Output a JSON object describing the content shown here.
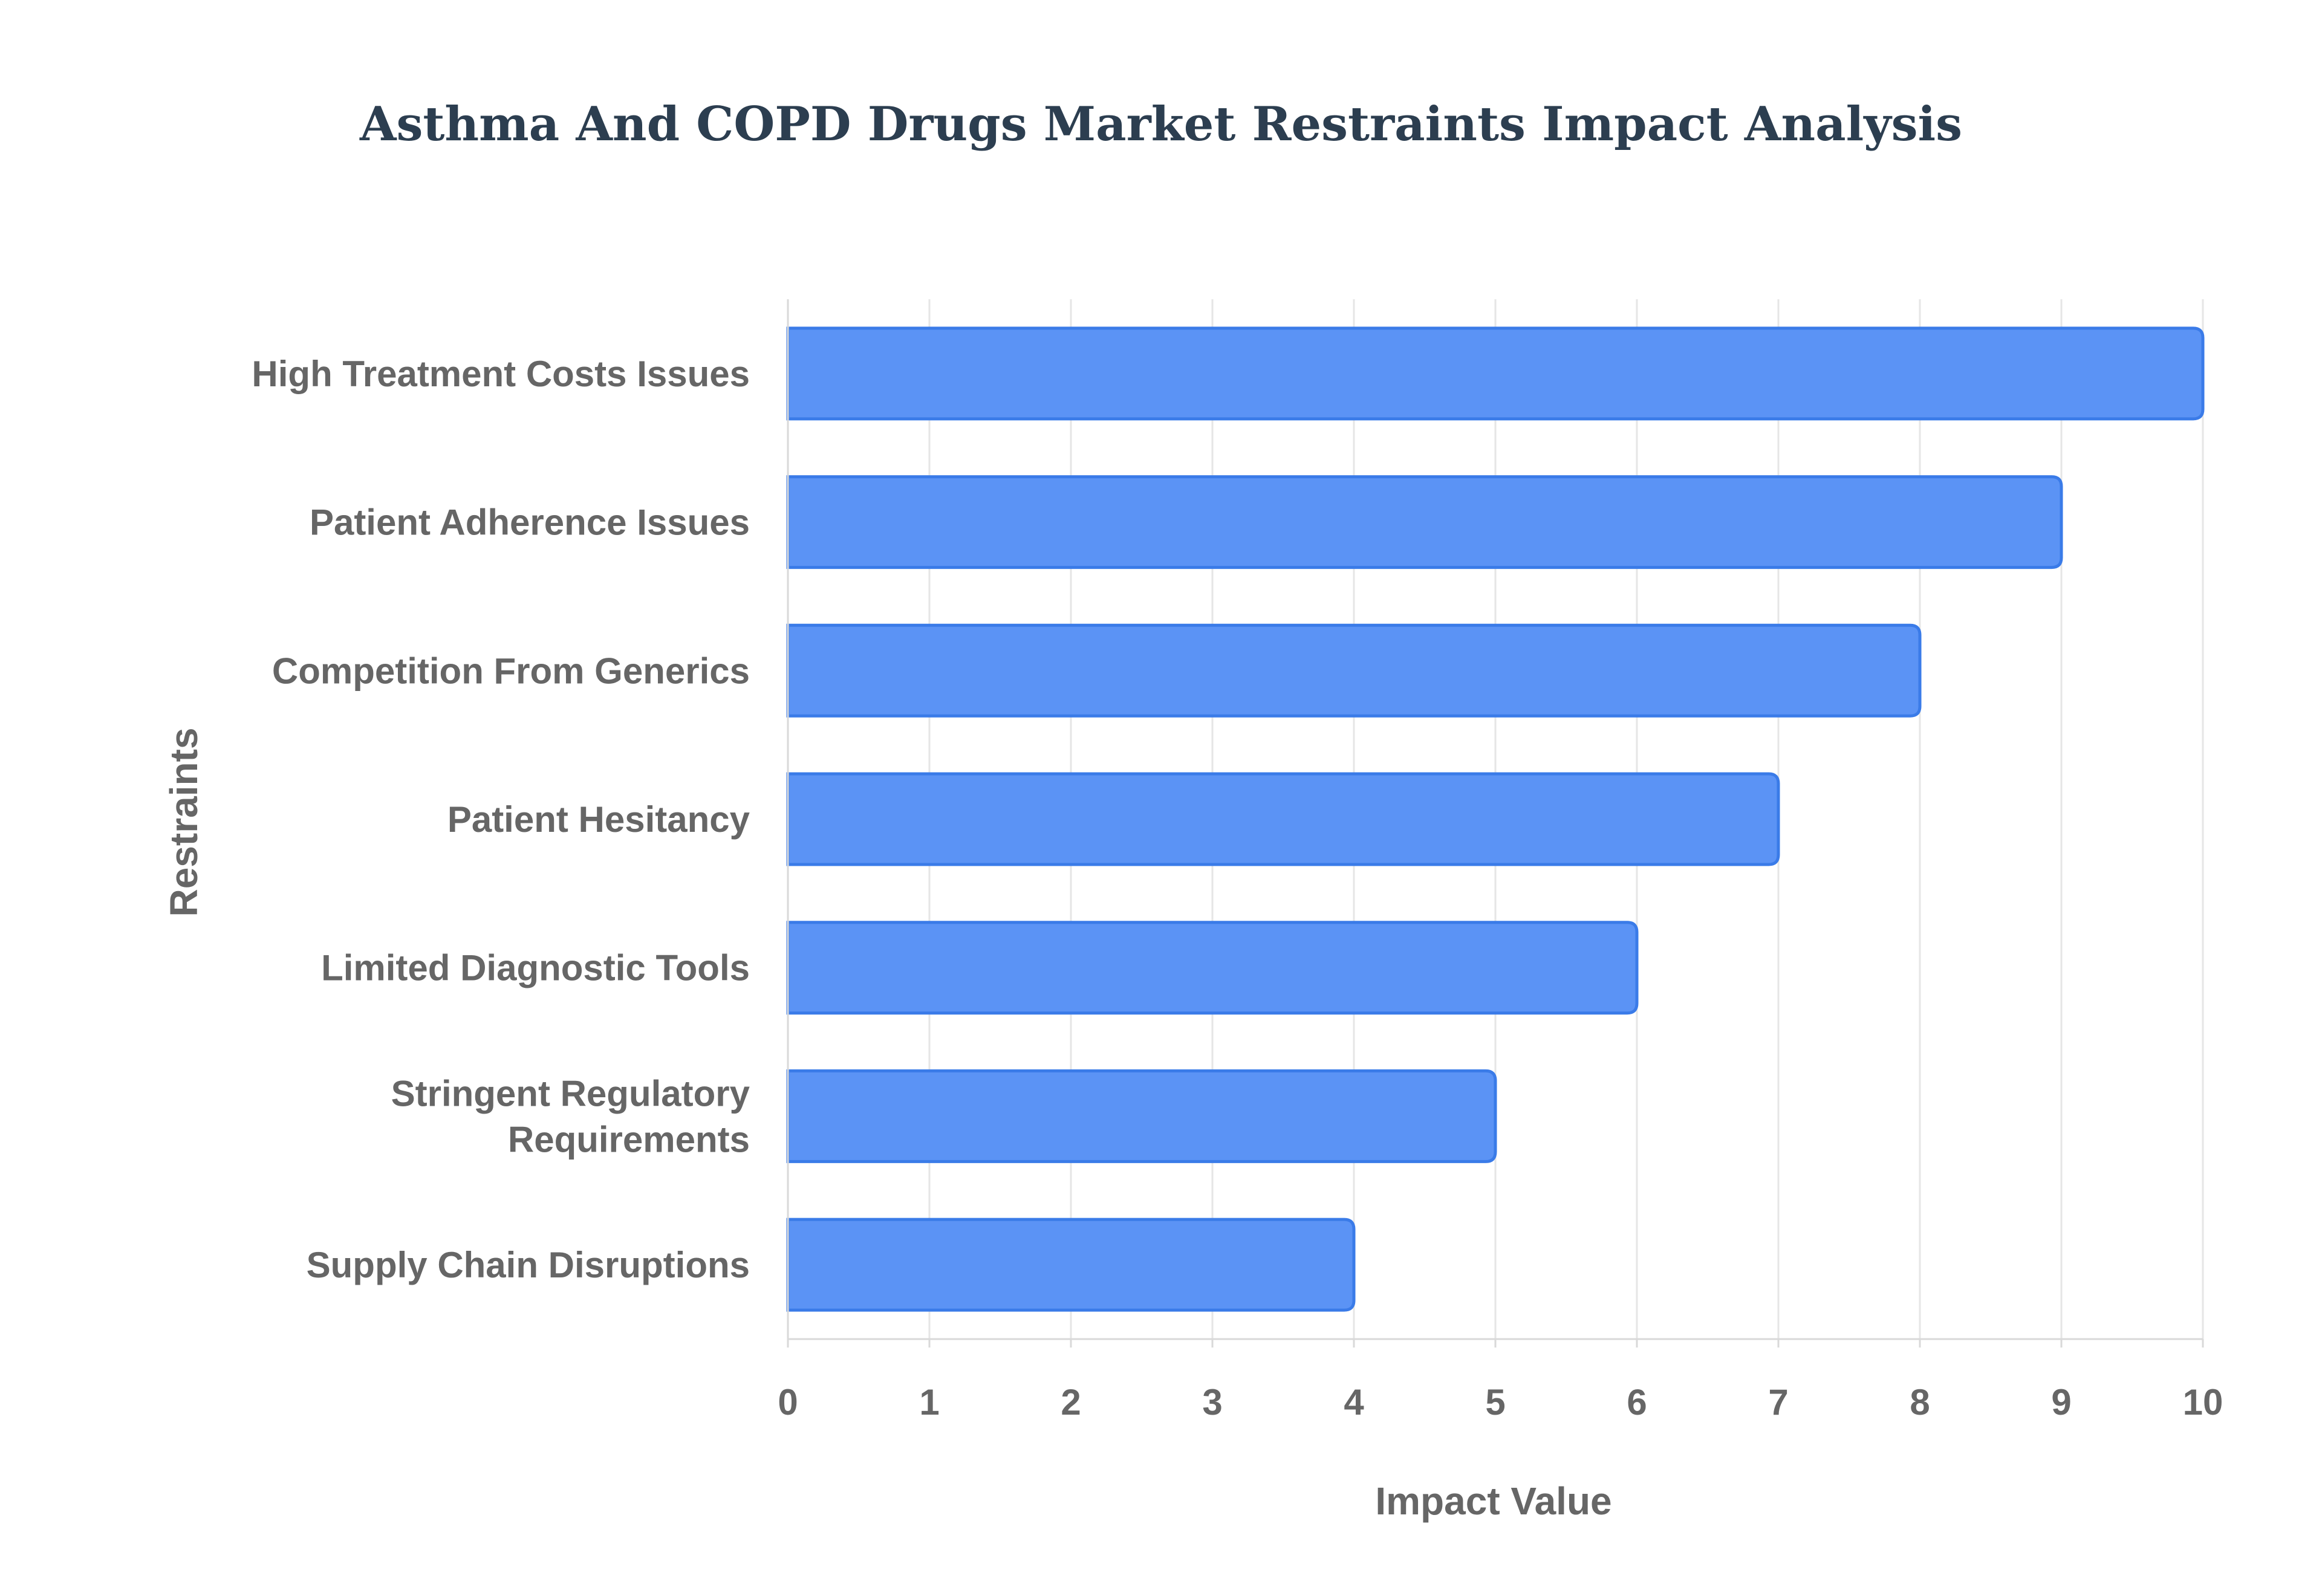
{
  "chart_data": {
    "type": "bar",
    "orientation": "horizontal",
    "title": "Asthma And COPD Drugs Market Restraints Impact Analysis",
    "xlabel": "Impact Value",
    "ylabel": "Restraints",
    "categories": [
      "High Treatment Costs Issues",
      "Patient Adherence Issues",
      "Competition From Generics",
      "Patient Hesitancy",
      "Limited Diagnostic Tools",
      "Stringent Regulatory Requirements",
      "Supply Chain Disruptions"
    ],
    "category_lines": [
      [
        "High Treatment Costs Issues"
      ],
      [
        "Patient Adherence Issues"
      ],
      [
        "Competition From Generics"
      ],
      [
        "Patient Hesitancy"
      ],
      [
        "Limited Diagnostic Tools"
      ],
      [
        "Stringent Regulatory",
        "Requirements"
      ],
      [
        "Supply Chain Disruptions"
      ]
    ],
    "values": [
      10,
      9,
      8,
      7,
      6,
      5,
      4
    ],
    "xlim": [
      0,
      10
    ],
    "xticks": [
      "0",
      "1",
      "2",
      "3",
      "4",
      "5",
      "6",
      "7",
      "8",
      "9",
      "10"
    ],
    "grid": true,
    "legend": "none",
    "colors": {
      "bar_fill": "#5b93f5",
      "bar_stroke": "#3a7be8",
      "grid": "#e6e6e6",
      "axis": "#d9d9d9",
      "title": "#2c3e50",
      "label": "#666666"
    }
  }
}
